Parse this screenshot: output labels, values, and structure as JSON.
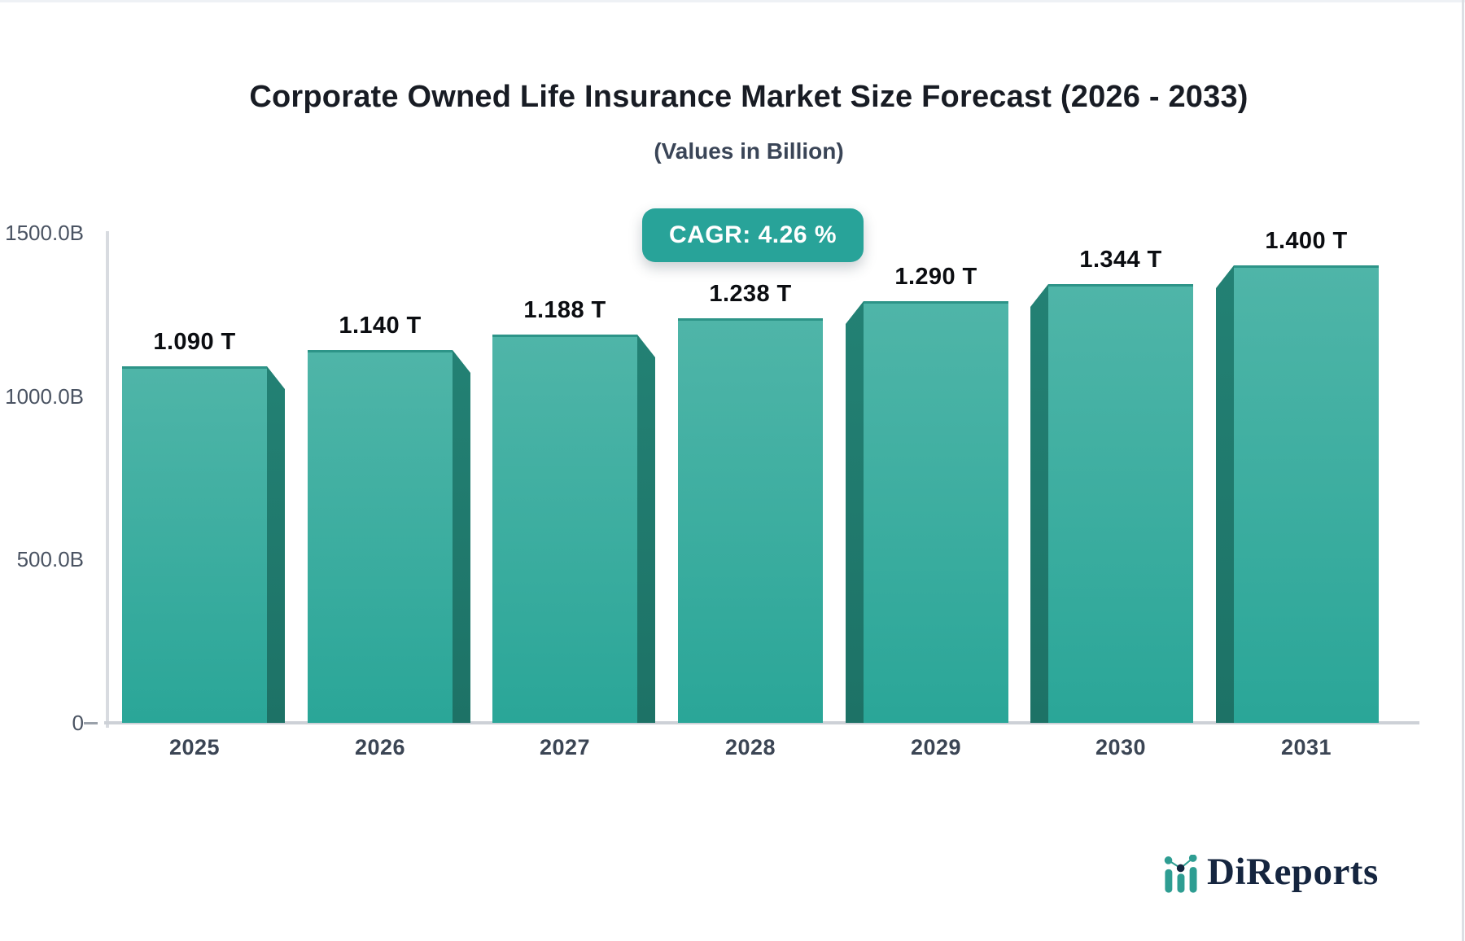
{
  "header": {
    "title": "Corporate Owned Life Insurance Market Size Forecast (2026 - 2033)",
    "subtitle": "(Values in Billion)",
    "cagr_badge": "CAGR: 4.26 %"
  },
  "chart_data": {
    "type": "bar",
    "title": "Corporate Owned Life Insurance Market Size Forecast (2026 - 2033)",
    "subtitle": "(Values in Billion)",
    "categories": [
      "2025",
      "2026",
      "2027",
      "2028",
      "2029",
      "2030",
      "2031"
    ],
    "values_billion": [
      1090,
      1140,
      1188,
      1238,
      1290,
      1344,
      1400
    ],
    "bar_labels": [
      "1.090 T",
      "1.140 T",
      "1.188 T",
      "1.238 T",
      "1.290 T",
      "1.344 T",
      "1.400 T"
    ],
    "xlabel": "",
    "ylabel": "",
    "ylim": [
      0,
      1500
    ],
    "y_ticks": [
      {
        "label": "1500.0B",
        "value": 1500
      },
      {
        "label": "1000.0B",
        "value": 1000
      },
      {
        "label": "500.0B",
        "value": 500
      },
      {
        "label": "0",
        "value": 0
      }
    ],
    "grid": false,
    "legend": "none",
    "annotation": "CAGR: 4.26 %",
    "bar_face_color_top": "#4fb5a8",
    "bar_face_color_bottom": "#2aa698",
    "bar_side_color": "#1f7d71",
    "style": "3d-bars, center perspective (side faces point away from middle bar)"
  },
  "branding": {
    "logo_text": "DiReports",
    "logo_icon": "bar-chart-trend-icon",
    "logo_teal": "#2e9d92",
    "logo_navy": "#15253f"
  }
}
